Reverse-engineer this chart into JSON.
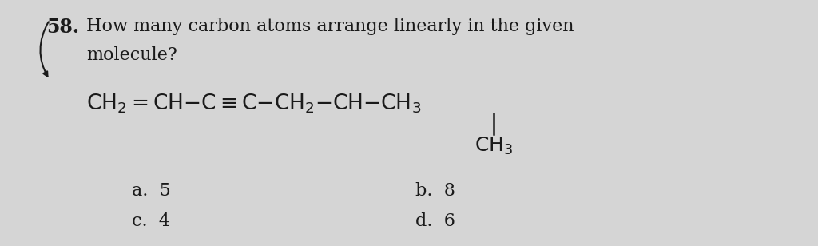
{
  "background_color": "#d5d5d5",
  "text_color": "#1a1a1a",
  "q_num": "58.",
  "q_line1": "How many carbon atoms arrange linearly in the given",
  "q_line2": "molecule?",
  "mol_main": "CH₂═CH—C≡C—CH₂—CH—CH₃",
  "mol_branch": "CH₃",
  "opt_a": "a.  5",
  "opt_b": "b.  8",
  "opt_c": "c.  4",
  "opt_d": "d.  6",
  "fs_question": 16,
  "fs_molecule": 19,
  "fs_options": 16
}
